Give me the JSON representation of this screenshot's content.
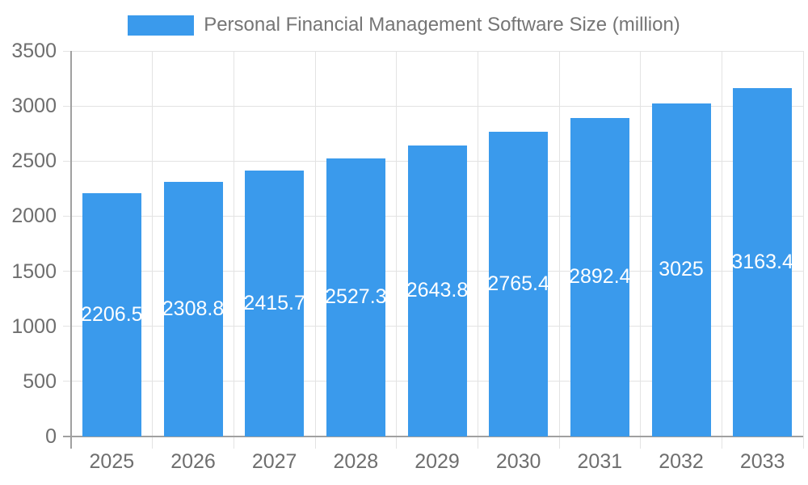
{
  "colors": {
    "bar": "#3A9AEC",
    "grid_line": "#E3E3E3",
    "axis_line": "#A0A0A0",
    "tick_text": "#6E6E6E",
    "bar_label_text": "#FFFFFF",
    "legend_text": "#757575",
    "background": "#FFFFFF"
  },
  "legend": {
    "swatch_icon": "blue-rect-swatch",
    "label": "Personal Financial Management Software Size (million)"
  },
  "chart_data": {
    "type": "bar",
    "title": "Personal Financial Management Software Size (million)",
    "categories": [
      "2025",
      "2026",
      "2027",
      "2028",
      "2029",
      "2030",
      "2031",
      "2032",
      "2033"
    ],
    "values": [
      2206.5,
      2308.8,
      2415.7,
      2527.3,
      2643.8,
      2765.4,
      2892.4,
      3025,
      3163.4
    ],
    "bar_labels": [
      "2206.5",
      "2308.8",
      "2415.7",
      "2527.3",
      "2643.8",
      "2765.4",
      "2892.4",
      "3025",
      "3163.4"
    ],
    "xlabel": "",
    "ylabel": "",
    "ylim": [
      0,
      3500
    ],
    "yticks": [
      0,
      500,
      1000,
      1500,
      2000,
      2500,
      3000,
      3500
    ],
    "grid": true,
    "legend_position": "top",
    "bar_label_position": "center-inside"
  }
}
